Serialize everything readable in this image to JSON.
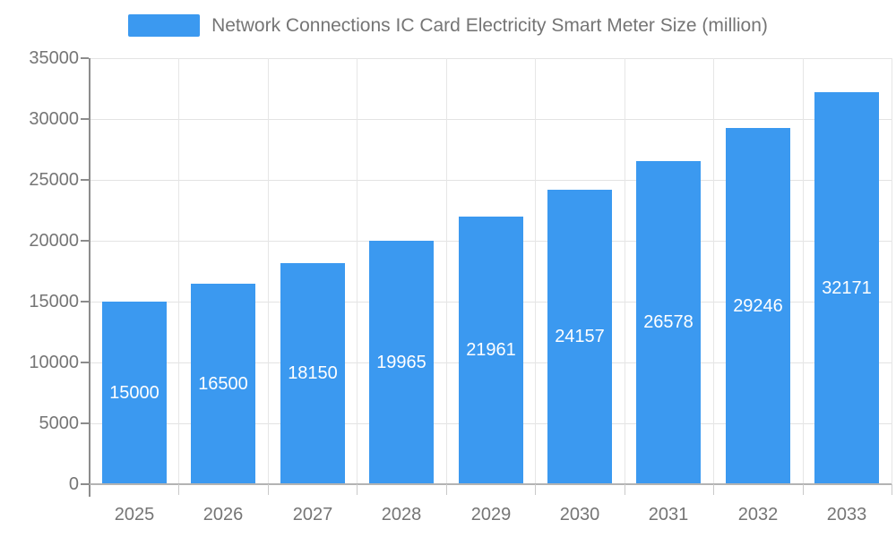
{
  "chart_data": {
    "type": "bar",
    "title": "Network Connections IC Card Electricity Smart Meter Size (million)",
    "series_name": "Network Connections IC Card Electricity Smart Meter Size (million)",
    "categories": [
      "2025",
      "2026",
      "2027",
      "2028",
      "2029",
      "2030",
      "2031",
      "2032",
      "2033"
    ],
    "values": [
      15000,
      16500,
      18150,
      19965,
      21961,
      24157,
      26578,
      29246,
      32171
    ],
    "value_labels": [
      "15000",
      "16500",
      "18150",
      "19965",
      "21961",
      "24157",
      "26578",
      "29246",
      "32171"
    ],
    "xlabel": "",
    "ylabel": "",
    "ylim": [
      0,
      35000
    ],
    "yticks": [
      0,
      5000,
      10000,
      15000,
      20000,
      25000,
      30000,
      35000
    ],
    "ytick_labels": [
      "0",
      "5000",
      "10000",
      "15000",
      "20000",
      "25000",
      "30000",
      "35000"
    ],
    "grid": true,
    "legend_position": "top-center",
    "value_label_position": "inside-center",
    "colors": {
      "bar": "#3b99f0",
      "value_label": "#ffffff",
      "axis_text": "#757575",
      "legend_text": "#757575",
      "grid_line_h": "#e3e3e3",
      "grid_line_v": "#e6e6e6",
      "y_axis_line": "#8c8c8c",
      "x_axis_line": "#b3b3b3",
      "tick": "#c9c9c9",
      "background": "#ffffff"
    }
  }
}
